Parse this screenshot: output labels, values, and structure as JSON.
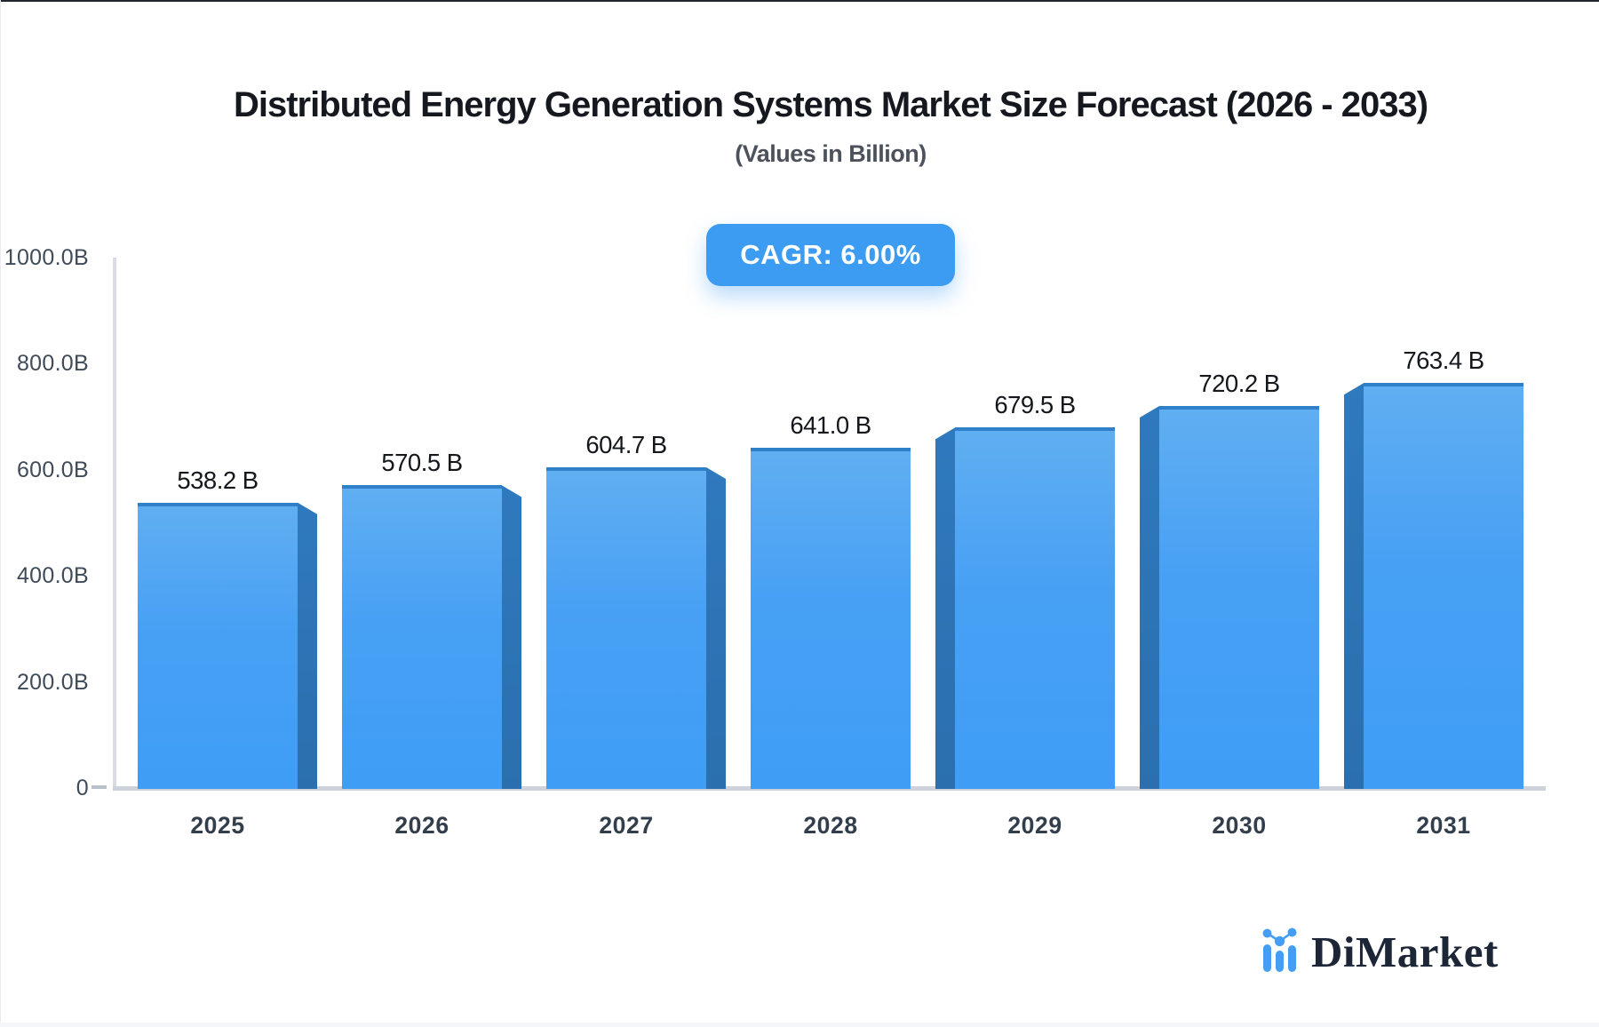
{
  "header": {
    "title": "Distributed Energy Generation Systems Market Size Forecast (2026 - 2033)",
    "subtitle": "(Values in Billion)"
  },
  "badge": {
    "label": "CAGR: 6.00%",
    "bg_color": "#3b9cf2",
    "text_color": "#ffffff"
  },
  "chart_data": {
    "type": "bar",
    "title": "Distributed Energy Generation Systems Market Size Forecast (2026 - 2033)",
    "subtitle": "(Values in Billion)",
    "cagr_label": "CAGR: 6.00%",
    "categories": [
      "2025",
      "2026",
      "2027",
      "2028",
      "2029",
      "2030",
      "2031"
    ],
    "values": [
      538.2,
      570.5,
      604.7,
      641.0,
      679.5,
      720.2,
      763.4
    ],
    "value_labels": [
      "538.2 B",
      "570.5 B",
      "604.7 B",
      "641.0 B",
      "679.5 B",
      "720.2 B",
      "763.4 B"
    ],
    "unit": "Billion",
    "ylim": [
      0,
      1000
    ],
    "y_ticks": [
      {
        "label": "1000.0B",
        "value": 1000
      },
      {
        "label": "800.0B",
        "value": 800
      },
      {
        "label": "600.0B",
        "value": 600
      },
      {
        "label": "400.0B",
        "value": 400
      },
      {
        "label": "200.0B",
        "value": 200
      },
      {
        "label": "0",
        "value": 0
      }
    ],
    "grid": false,
    "legend": "none",
    "bar_front_color": "#479ff4",
    "bar_side_color": "#2d74b7",
    "bar_top_edge_color": "#2f80c8",
    "axis_line_color": "#ced3db"
  },
  "logo": {
    "text": "DiMarket",
    "text_color": "#1c2637",
    "icon": "bar-chart-logo-icon",
    "icon_color": "#459ef5"
  }
}
